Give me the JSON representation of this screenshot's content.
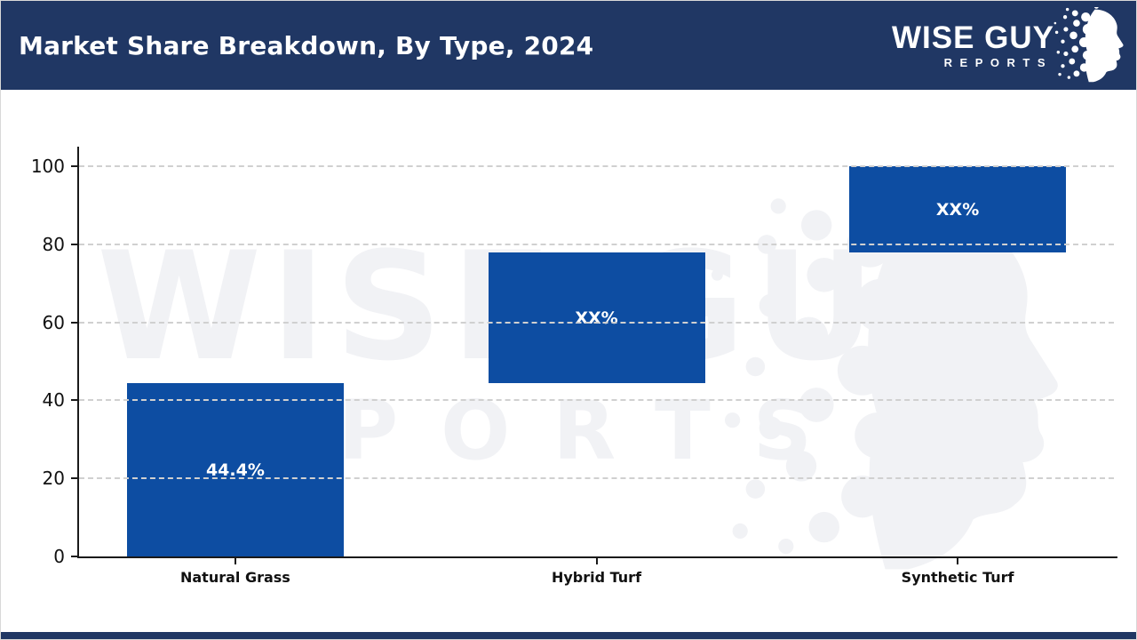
{
  "header": {
    "title": "Market Share Breakdown, By Type, 2024",
    "logo": {
      "name": "WISE GUY",
      "sub": "REPORTS"
    }
  },
  "watermark": {
    "name": "WISE GUY",
    "sub": "REPORTS"
  },
  "colors": {
    "header_bg": "#203764",
    "footer_bg": "#203764",
    "bar_fill": "#0d4da2",
    "grid_line": "#d0d0d0",
    "axis_line": "#1a1a1a",
    "bar_label_text": "#ffffff",
    "watermark_tint": "#f1f2f5"
  },
  "chart_data": {
    "type": "bar",
    "variant": "floating-waterfall",
    "title": "Market Share Breakdown, By Type, 2024",
    "categories": [
      "Natural Grass",
      "Hybrid Turf",
      "Synthetic Turf"
    ],
    "series": [
      {
        "name": "Market Share (%)",
        "segments": [
          {
            "category": "Natural Grass",
            "start": 0,
            "end": 44.4,
            "label": "44.4%"
          },
          {
            "category": "Hybrid Turf",
            "start": 44.4,
            "end": 77.8,
            "label": "XX%"
          },
          {
            "category": "Synthetic Turf",
            "start": 77.8,
            "end": 100,
            "label": "XX%"
          }
        ]
      }
    ],
    "xlabel": "",
    "ylabel": "",
    "ylim": [
      0,
      105
    ],
    "yticks": [
      0,
      20,
      40,
      60,
      80,
      100
    ],
    "grid": "horizontal-dashed",
    "legend_position": "none",
    "bar_color": "#0d4da2"
  }
}
